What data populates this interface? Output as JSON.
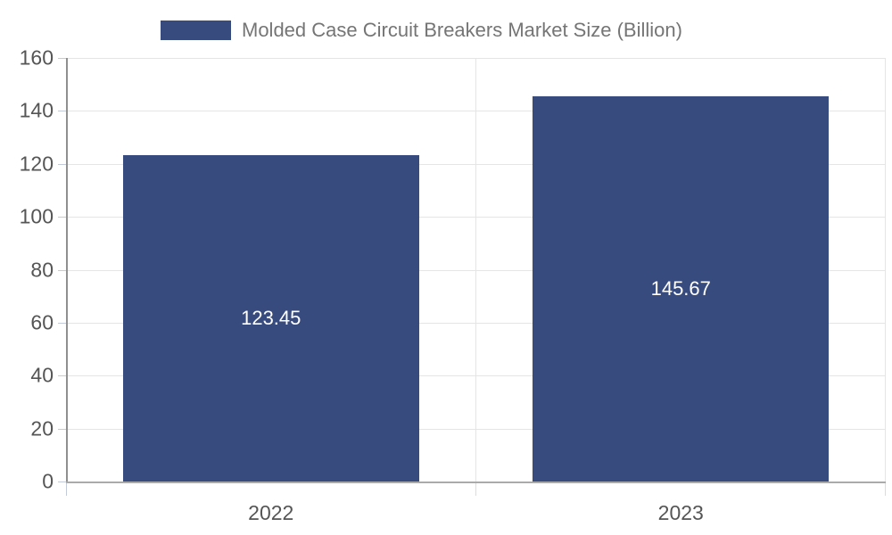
{
  "chart_data": {
    "type": "bar",
    "title": "",
    "legend": {
      "label": "Molded Case Circuit Breakers Market Size (Billion)",
      "position": "top"
    },
    "categories": [
      "2022",
      "2023"
    ],
    "series": [
      {
        "name": "Molded Case Circuit Breakers Market Size (Billion)",
        "values": [
          123.45,
          145.67
        ]
      }
    ],
    "value_labels": [
      "123.45",
      "145.67"
    ],
    "xlabel": "",
    "ylabel": "",
    "ylim": [
      0,
      160
    ],
    "ytick_interval": 20,
    "yticks": [
      0,
      20,
      40,
      60,
      80,
      100,
      120,
      140,
      160
    ],
    "grid": true,
    "colors": {
      "bar": "#374B7F",
      "background": "#ffffff",
      "gridline": "#e5e5e5",
      "x_axis_line": "#aaaaaa",
      "y_axis_line": "#8f8f8f",
      "axis_tick": "#c3cada",
      "boundary_tick": "#dcdcdc",
      "tick_label": "#555555",
      "legend_text": "#757575",
      "value_label": "#ffffff"
    }
  }
}
